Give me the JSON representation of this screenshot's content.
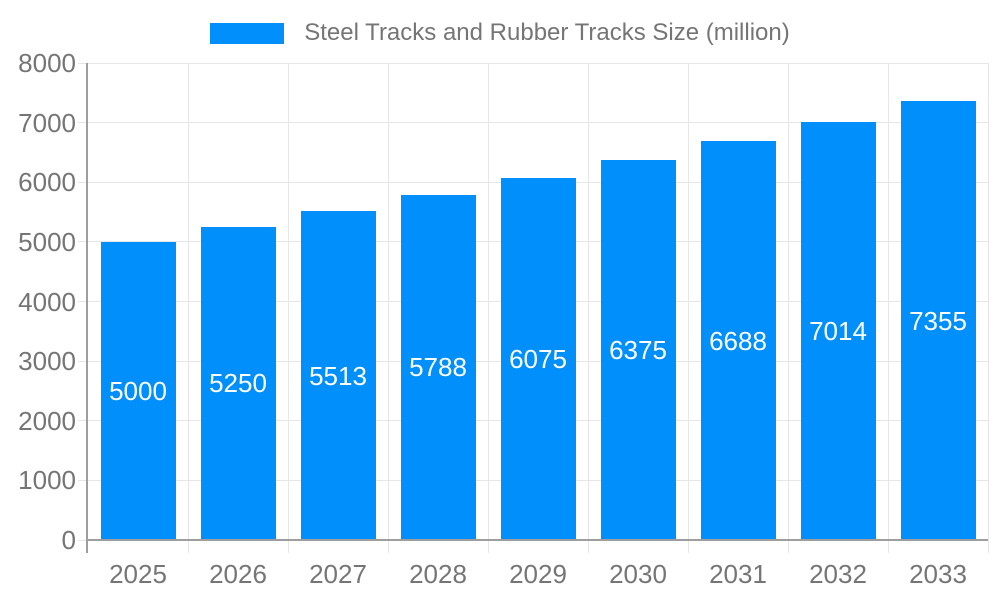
{
  "chart_data": {
    "type": "bar",
    "title": "Steel Tracks and Rubber Tracks Size (million)",
    "legend": {
      "position": "top",
      "label": "Steel Tracks and Rubber Tracks Size (million)"
    },
    "categories": [
      "2025",
      "2026",
      "2027",
      "2028",
      "2029",
      "2030",
      "2031",
      "2032",
      "2033"
    ],
    "series": [
      {
        "name": "Steel Tracks and Rubber Tracks Size (million)",
        "values": [
          5000,
          5250,
          5513,
          5788,
          6075,
          6375,
          6688,
          7014,
          7355
        ]
      }
    ],
    "data_labels": [
      "5000",
      "5250",
      "5513",
      "5788",
      "6075",
      "6375",
      "6688",
      "7014",
      "7355"
    ],
    "xlabel": "",
    "ylabel": "",
    "ylim": [
      0,
      8000
    ],
    "yticks": [
      0,
      1000,
      2000,
      3000,
      4000,
      5000,
      6000,
      7000,
      8000
    ],
    "grid": true,
    "colors": {
      "bar": "#008FFB",
      "value_label": "#FFFFFF",
      "axis_label": "#757575",
      "gridline": "#E6E6E6",
      "axis_line": "#9E9E9E",
      "background": "#FFFFFF"
    }
  }
}
